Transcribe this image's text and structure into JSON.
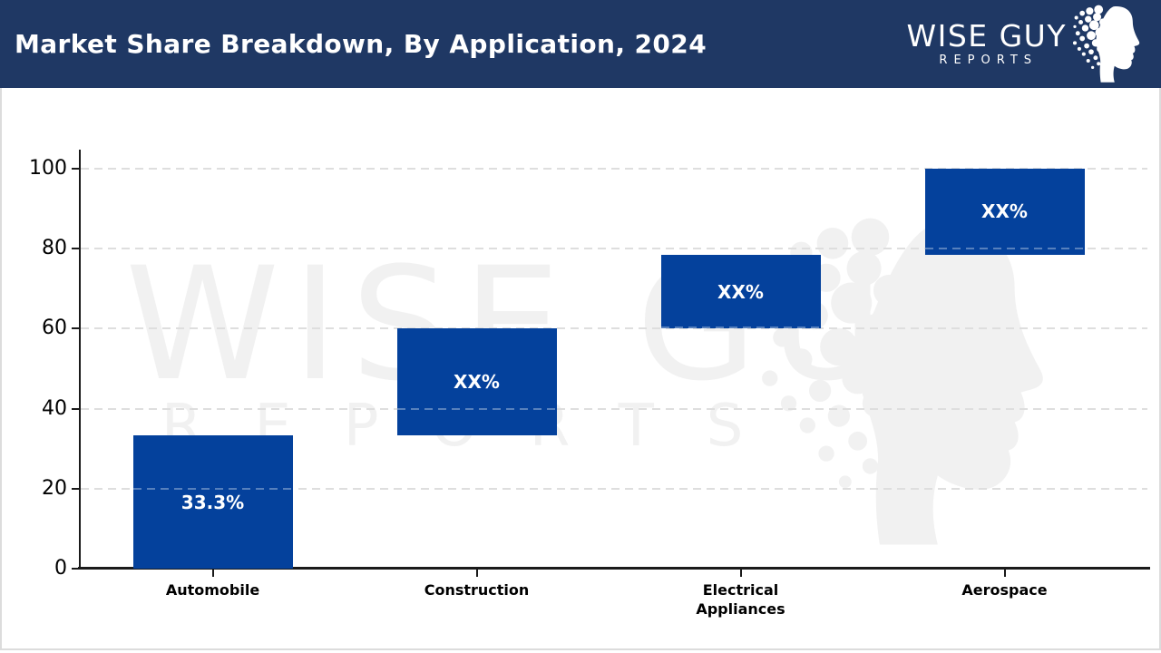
{
  "header": {
    "title": "Market Share Breakdown, By Application, 2024",
    "logo": {
      "name": "WISE GUY",
      "subtitle": "REPORTS"
    }
  },
  "watermark": {
    "line1": "WISE GUY",
    "line2": "REPORTS"
  },
  "colors": {
    "header_bg": "#1F3864",
    "bar": "#04419C",
    "axis": "#1a1a1a",
    "grid": "#dedede",
    "frame": "#dcdcdc",
    "watermark": "#f1f1f1",
    "bar_label_text": "#ffffff"
  },
  "chart_data": {
    "type": "bar",
    "subtype": "waterfall",
    "title": "Market Share Breakdown, By Application, 2024",
    "categories": [
      "Automobile",
      "Construction",
      "Electrical\nAppliances",
      "Aerospace"
    ],
    "segments": [
      [
        0,
        33.3
      ],
      [
        33.3,
        60
      ],
      [
        60,
        78.5
      ],
      [
        78.5,
        100
      ]
    ],
    "values": [
      33.3,
      26.7,
      18.5,
      21.5
    ],
    "bar_labels": [
      "33.3%",
      "XX%",
      "XX%",
      "XX%"
    ],
    "yticks": [
      0,
      20,
      40,
      60,
      80,
      100
    ],
    "ylim": [
      0,
      100
    ],
    "xlabel": "",
    "ylabel": "",
    "grid": "horizontal-dashed",
    "legend": "none"
  }
}
